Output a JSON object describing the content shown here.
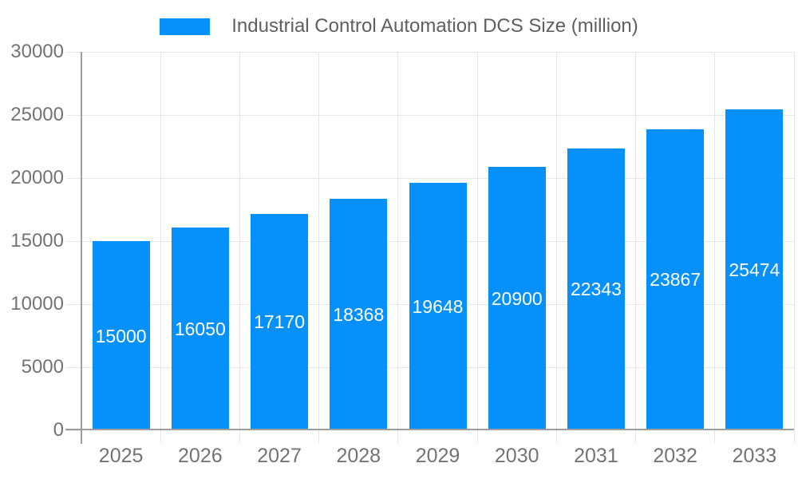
{
  "chart_data": {
    "type": "bar",
    "title": "Industrial Control Automation DCS Size (million)",
    "series_name": "Industrial Control Automation DCS Size (million)",
    "categories": [
      "2025",
      "2026",
      "2027",
      "2028",
      "2029",
      "2030",
      "2031",
      "2032",
      "2033"
    ],
    "values": [
      15000,
      16050,
      17170,
      18368,
      19648,
      20900,
      22343,
      23867,
      25474
    ],
    "bar_value_labels": [
      "15000",
      "16050",
      "17170",
      "18368",
      "19648",
      "20900",
      "22343",
      "23867",
      "25474"
    ],
    "y_ticks": [
      0,
      5000,
      10000,
      15000,
      20000,
      25000,
      30000
    ],
    "ylim": [
      0,
      30000
    ],
    "xlabel": "",
    "ylabel": "",
    "grid": true,
    "legend_position": "top",
    "colors": {
      "bar": "#0690FA",
      "bar_label": "#FFFFFF",
      "grid": "#E6E6E6",
      "axis": "#9E9E9E",
      "tick_text": "#737373",
      "legend_text": "#5F5F5F",
      "background": "#FFFFFF"
    }
  }
}
